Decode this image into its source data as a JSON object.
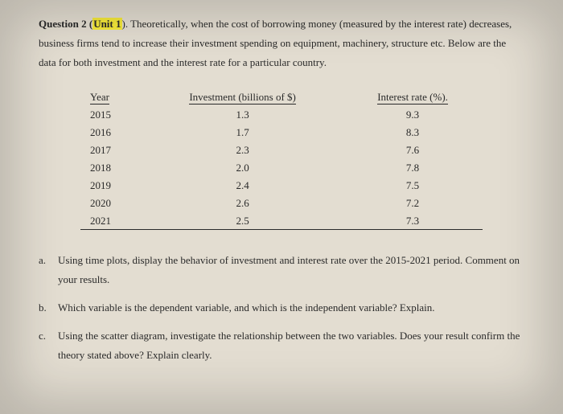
{
  "header": {
    "question_label": "Question 2",
    "unit_label": "Unit 1",
    "intro_text_1": "). Theoretically, when the cost of borrowing money (measured by the interest rate) decreases, business firms tend to increase their investment spending on equipment, machinery, structure etc. Below are the data for both investment and the interest rate for a particular country."
  },
  "table": {
    "columns": [
      "Year",
      "Investment (billions of $)",
      "Interest rate (%)."
    ],
    "rows": [
      [
        "2015",
        "1.3",
        "9.3"
      ],
      [
        "2016",
        "1.7",
        "8.3"
      ],
      [
        "2017",
        "2.3",
        "7.6"
      ],
      [
        "2018",
        "2.0",
        "7.8"
      ],
      [
        "2019",
        "2.4",
        "7.5"
      ],
      [
        "2020",
        "2.6",
        "7.2"
      ],
      [
        "2021",
        "2.5",
        "7.3"
      ]
    ],
    "col_align": [
      "left",
      "center",
      "center"
    ],
    "header_underline": true,
    "last_row_underline": true,
    "font_size": 13,
    "text_color": "#2a2a2a"
  },
  "subquestions": {
    "items": [
      {
        "letter": "a.",
        "text": "Using time plots, display the behavior of investment and interest rate over the 2015-2021 period. Comment on your results."
      },
      {
        "letter": "b.",
        "text": "Which variable is the dependent variable, and which is the independent variable? Explain."
      },
      {
        "letter": "c.",
        "text": "Using the scatter diagram, investigate the relationship between the two variables. Does your result confirm the theory stated above? Explain clearly."
      }
    ]
  },
  "style": {
    "background_color": "#e3ddd1",
    "highlight_color": "#f5e93a",
    "text_color": "#2a2a2a",
    "font_family": "Times New Roman"
  }
}
